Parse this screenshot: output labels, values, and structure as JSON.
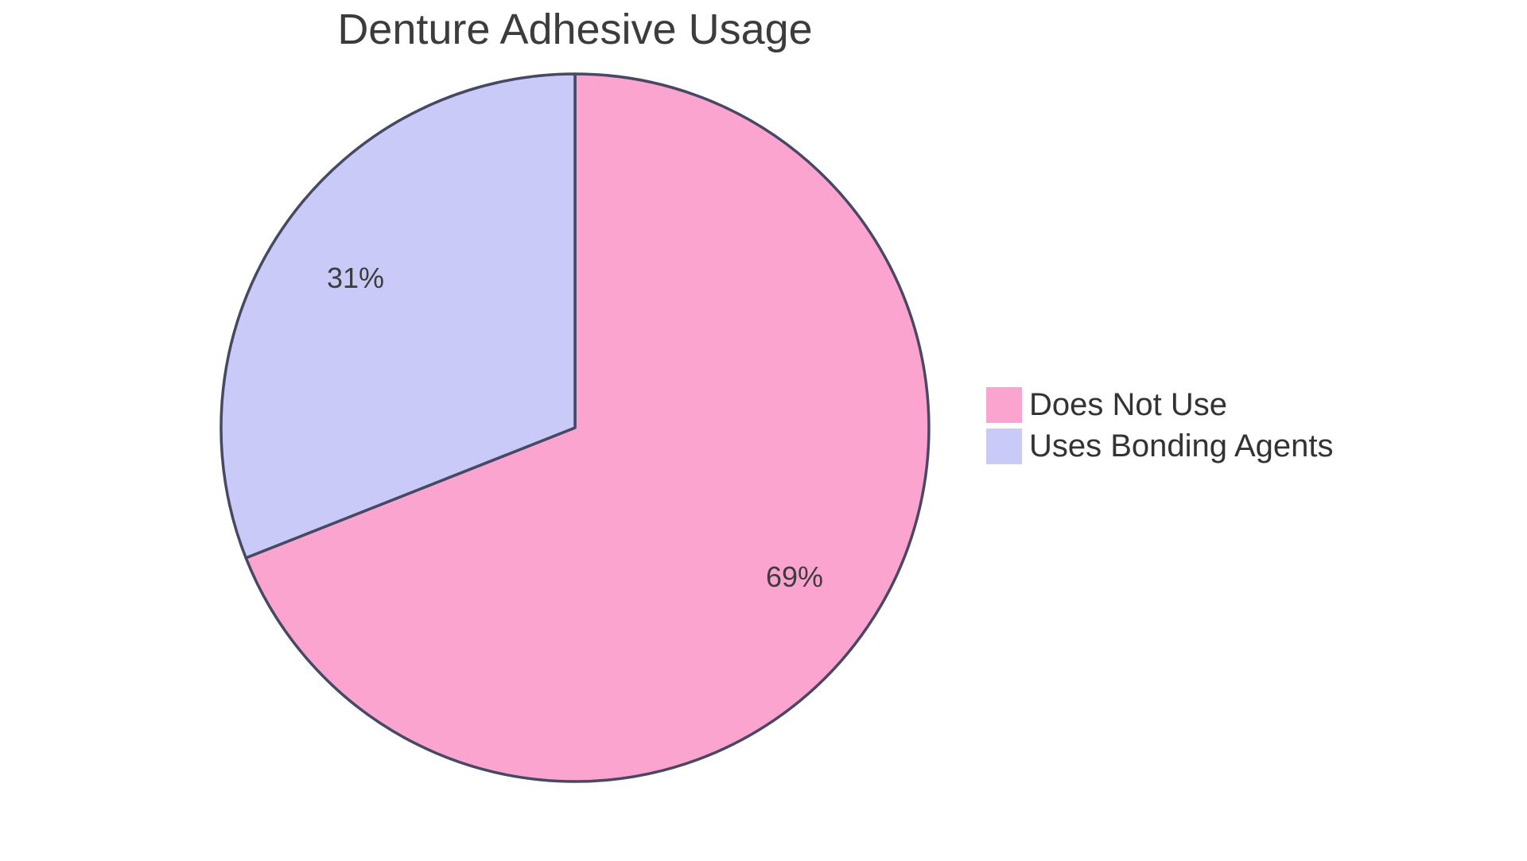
{
  "chart_data": {
    "type": "pie",
    "title": "Denture Adhesive Usage",
    "labels": [
      "Does Not Use",
      "Uses Bonding Agents"
    ],
    "values": [
      69,
      31
    ],
    "slice_labels": [
      "69%",
      "31%"
    ],
    "colors": [
      "#FBA4CF",
      "#C9CAF7"
    ],
    "border_color": "#464864",
    "title_color": "#3C3C3C",
    "slice_label_color": "#3C3C3C",
    "legend_text_color": "#333333",
    "background": "#FFFFFF",
    "legend_position": "right",
    "start_angle": "12 o'clock",
    "direction": "clockwise"
  }
}
